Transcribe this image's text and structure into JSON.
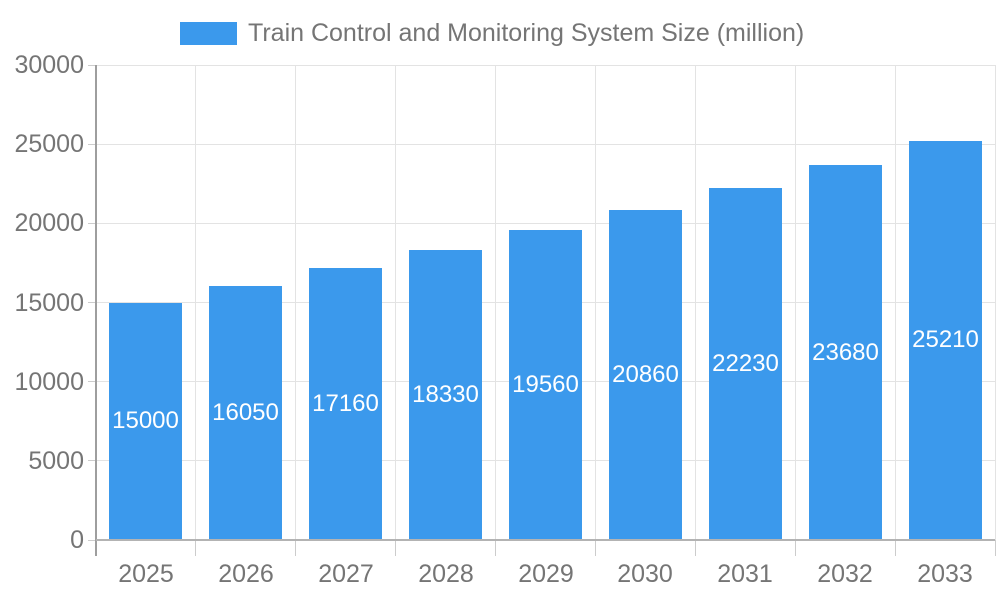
{
  "legend": {
    "label": "Train Control and Monitoring System Size (million)"
  },
  "chart_data": {
    "type": "bar",
    "title": "Train Control and Monitoring System Size (million)",
    "categories": [
      "2025",
      "2026",
      "2027",
      "2028",
      "2029",
      "2030",
      "2031",
      "2032",
      "2033"
    ],
    "values": [
      15000,
      16050,
      17160,
      18330,
      19560,
      20860,
      22230,
      23680,
      25210
    ],
    "xlabel": "",
    "ylabel": "",
    "ylim": [
      0,
      30000
    ],
    "yticks": [
      0,
      5000,
      10000,
      15000,
      20000,
      25000,
      30000
    ],
    "grid": true,
    "legend_position": "top",
    "value_labels": "inside-center",
    "colors": {
      "bar": "#3b99ec",
      "value_label": "#ffffff",
      "axis_text": "#757575",
      "gridline": "#e3e3e3",
      "axis_line": "#9e9e9e",
      "baseline": "#b3b3b3",
      "tick": "#cccccc",
      "background": "#ffffff"
    }
  }
}
